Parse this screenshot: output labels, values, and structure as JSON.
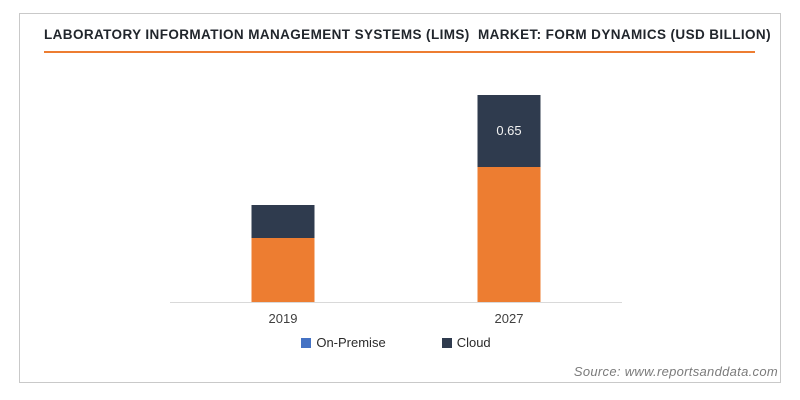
{
  "chart": {
    "title": "LABORATORY INFORMATION MANAGEMENT SYSTEMS (LIMS)  MARKET: FORM DYNAMICS (USD BILLION)"
  },
  "source": {
    "text": "Source: www.reportsanddata.com"
  },
  "colors": {
    "accent_underline": "#ED7D31",
    "on_premise_bar": "#ED7D31",
    "cloud_bar": "#2F3B4E",
    "on_premise_legend_swatch": "#4472C4",
    "cloud_legend_swatch": "#2F3B4E",
    "axis_line": "#D9D9D9",
    "frame_border": "#C9C9C9"
  },
  "chart_data": {
    "type": "bar",
    "stacked": true,
    "title": "LABORATORY INFORMATION MANAGEMENT SYSTEMS (LIMS)  MARKET: FORM DYNAMICS (USD BILLION)",
    "xlabel": "",
    "ylabel": "",
    "categories": [
      "2019",
      "2027"
    ],
    "series": [
      {
        "name": "On-Premise",
        "values": [
          0.58,
          1.22
        ],
        "color": "#ED7D31",
        "legend_color": "#4472C4",
        "data_labels": [
          null,
          null
        ]
      },
      {
        "name": "Cloud",
        "values": [
          0.3,
          0.65
        ],
        "color": "#2F3B4E",
        "legend_color": "#2F3B4E",
        "data_labels": [
          null,
          "0.65"
        ]
      }
    ],
    "ylim": [
      0,
      2.2
    ],
    "gridlines": false,
    "y_axis_visible": false,
    "legend_position": "bottom"
  }
}
